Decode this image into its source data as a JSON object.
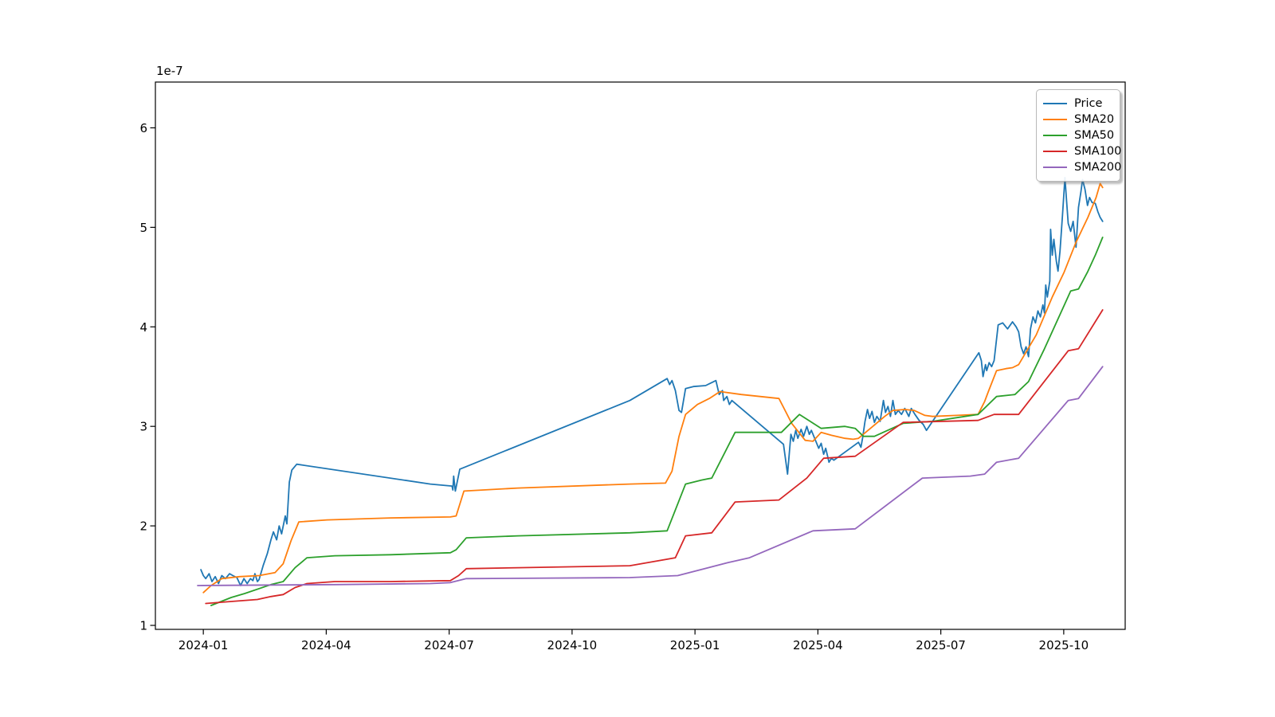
{
  "figure": {
    "background": "#ffffff"
  },
  "chart_data": {
    "type": "line",
    "title": "",
    "offset_text": "1e-7",
    "xlabel": "",
    "ylabel": "",
    "grid": false,
    "legend_position": "upper right",
    "x_unit": "months since 2024-01-01",
    "y_unit": "value x 1e-7",
    "x_range_months": [
      -1.17,
      22.5
    ],
    "y_range": [
      0.96,
      6.46
    ],
    "x_tick_months": [
      0,
      3,
      6,
      9,
      12,
      15,
      18,
      21
    ],
    "x_tick_labels": [
      "2024-01",
      "2024-04",
      "2024-07",
      "2024-10",
      "2025-01",
      "2025-04",
      "2025-07",
      "2025-10"
    ],
    "y_ticks": [
      1,
      2,
      3,
      4,
      5,
      6
    ],
    "y_tick_labels": [
      "1",
      "2",
      "3",
      "4",
      "5",
      "6"
    ],
    "series": [
      {
        "name": "Price",
        "color": "#1f77b4",
        "points": [
          [
            -0.06,
            1.56
          ],
          [
            0,
            1.5
          ],
          [
            0.06,
            1.47
          ],
          [
            0.14,
            1.52
          ],
          [
            0.21,
            1.44
          ],
          [
            0.29,
            1.49
          ],
          [
            0.37,
            1.42
          ],
          [
            0.45,
            1.5
          ],
          [
            0.54,
            1.47
          ],
          [
            0.64,
            1.52
          ],
          [
            0.72,
            1.5
          ],
          [
            0.82,
            1.48
          ],
          [
            0.91,
            1.4
          ],
          [
            0.99,
            1.47
          ],
          [
            1.07,
            1.42
          ],
          [
            1.15,
            1.47
          ],
          [
            1.21,
            1.45
          ],
          [
            1.26,
            1.52
          ],
          [
            1.32,
            1.44
          ],
          [
            1.36,
            1.46
          ],
          [
            1.46,
            1.6
          ],
          [
            1.56,
            1.72
          ],
          [
            1.65,
            1.86
          ],
          [
            1.71,
            1.94
          ],
          [
            1.79,
            1.86
          ],
          [
            1.85,
            2
          ],
          [
            1.91,
            1.92
          ],
          [
            2,
            2.1
          ],
          [
            2.04,
            2.02
          ],
          [
            2.1,
            2.44
          ],
          [
            2.16,
            2.56
          ],
          [
            2.28,
            2.62
          ],
          [
            5.54,
            2.42
          ],
          [
            6.07,
            2.4
          ],
          [
            6.09,
            2.36
          ],
          [
            6.11,
            2.5
          ],
          [
            6.15,
            2.35
          ],
          [
            6.26,
            2.57
          ],
          [
            10.41,
            3.26
          ],
          [
            11.32,
            3.48
          ],
          [
            11.38,
            3.42
          ],
          [
            11.44,
            3.46
          ],
          [
            11.52,
            3.36
          ],
          [
            11.61,
            3.16
          ],
          [
            11.67,
            3.14
          ],
          [
            11.77,
            3.38
          ],
          [
            11.96,
            3.4
          ],
          [
            12.26,
            3.41
          ],
          [
            12.51,
            3.46
          ],
          [
            12.59,
            3.32
          ],
          [
            12.67,
            3.36
          ],
          [
            12.7,
            3.26
          ],
          [
            12.78,
            3.3
          ],
          [
            12.84,
            3.22
          ],
          [
            12.9,
            3.26
          ],
          [
            14.16,
            2.82
          ],
          [
            14.26,
            2.52
          ],
          [
            14.34,
            2.92
          ],
          [
            14.4,
            2.85
          ],
          [
            14.46,
            2.96
          ],
          [
            14.51,
            2.88
          ],
          [
            14.59,
            2.97
          ],
          [
            14.65,
            2.9
          ],
          [
            14.73,
            3
          ],
          [
            14.79,
            2.92
          ],
          [
            14.84,
            2.96
          ],
          [
            14.92,
            2.88
          ],
          [
            15.02,
            2.78
          ],
          [
            15.08,
            2.83
          ],
          [
            15.14,
            2.72
          ],
          [
            15.19,
            2.78
          ],
          [
            15.27,
            2.64
          ],
          [
            15.33,
            2.68
          ],
          [
            15.39,
            2.66
          ],
          [
            15.99,
            2.84
          ],
          [
            16.05,
            2.79
          ],
          [
            16.09,
            2.88
          ],
          [
            16.15,
            3.05
          ],
          [
            16.21,
            3.17
          ],
          [
            16.26,
            3.08
          ],
          [
            16.32,
            3.15
          ],
          [
            16.38,
            3.04
          ],
          [
            16.44,
            3.1
          ],
          [
            16.52,
            3.05
          ],
          [
            16.6,
            3.26
          ],
          [
            16.65,
            3.14
          ],
          [
            16.71,
            3.2
          ],
          [
            16.77,
            3.1
          ],
          [
            16.83,
            3.26
          ],
          [
            16.89,
            3.12
          ],
          [
            16.96,
            3.16
          ],
          [
            17.04,
            3.12
          ],
          [
            17.12,
            3.18
          ],
          [
            17.22,
            3.1
          ],
          [
            17.28,
            3.18
          ],
          [
            17.37,
            3.12
          ],
          [
            17.47,
            3.06
          ],
          [
            17.57,
            3.02
          ],
          [
            17.65,
            2.96
          ],
          [
            18.93,
            3.74
          ],
          [
            18.99,
            3.66
          ],
          [
            19.03,
            3.5
          ],
          [
            19.09,
            3.62
          ],
          [
            19.12,
            3.56
          ],
          [
            19.18,
            3.64
          ],
          [
            19.24,
            3.6
          ],
          [
            19.3,
            3.66
          ],
          [
            19.4,
            4.02
          ],
          [
            19.51,
            4.04
          ],
          [
            19.63,
            3.98
          ],
          [
            19.75,
            4.05
          ],
          [
            19.84,
            4
          ],
          [
            19.9,
            3.95
          ],
          [
            19.96,
            3.8
          ],
          [
            20.02,
            3.73
          ],
          [
            20.08,
            3.8
          ],
          [
            20.14,
            3.7
          ],
          [
            20.19,
            3.98
          ],
          [
            20.25,
            4.1
          ],
          [
            20.31,
            4.04
          ],
          [
            20.37,
            4.16
          ],
          [
            20.43,
            4.1
          ],
          [
            20.49,
            4.22
          ],
          [
            20.53,
            4.14
          ],
          [
            20.56,
            4.42
          ],
          [
            20.6,
            4.3
          ],
          [
            20.66,
            4.46
          ],
          [
            20.68,
            4.98
          ],
          [
            20.72,
            4.72
          ],
          [
            20.76,
            4.88
          ],
          [
            20.82,
            4.66
          ],
          [
            20.86,
            4.56
          ],
          [
            20.91,
            4.76
          ],
          [
            20.97,
            5.12
          ],
          [
            21.03,
            5.5
          ],
          [
            21.07,
            5.26
          ],
          [
            21.11,
            5.04
          ],
          [
            21.17,
            4.96
          ],
          [
            21.23,
            5.06
          ],
          [
            21.3,
            4.8
          ],
          [
            21.36,
            5.2
          ],
          [
            21.42,
            5.36
          ],
          [
            21.46,
            5.48
          ],
          [
            21.52,
            5.38
          ],
          [
            21.58,
            5.22
          ],
          [
            21.63,
            5.3
          ],
          [
            21.69,
            5.25
          ],
          [
            21.77,
            5.24
          ],
          [
            21.83,
            5.16
          ],
          [
            21.89,
            5.1
          ],
          [
            21.95,
            5.06
          ]
        ]
      },
      {
        "name": "SMA20",
        "color": "#ff7f0e",
        "points": [
          [
            0,
            1.33
          ],
          [
            0.19,
            1.4
          ],
          [
            0.45,
            1.47
          ],
          [
            0.88,
            1.49
          ],
          [
            1.36,
            1.5
          ],
          [
            1.75,
            1.53
          ],
          [
            1.95,
            1.62
          ],
          [
            2.14,
            1.85
          ],
          [
            2.33,
            2.04
          ],
          [
            3.02,
            2.06
          ],
          [
            4.57,
            2.08
          ],
          [
            6.03,
            2.09
          ],
          [
            6.17,
            2.1
          ],
          [
            6.36,
            2.35
          ],
          [
            7.68,
            2.38
          ],
          [
            10.41,
            2.42
          ],
          [
            11.28,
            2.43
          ],
          [
            11.44,
            2.55
          ],
          [
            11.61,
            2.9
          ],
          [
            11.77,
            3.12
          ],
          [
            12.06,
            3.22
          ],
          [
            12.35,
            3.28
          ],
          [
            12.61,
            3.35
          ],
          [
            13.13,
            3.32
          ],
          [
            14.05,
            3.28
          ],
          [
            14.36,
            3.03
          ],
          [
            14.69,
            2.86
          ],
          [
            14.88,
            2.85
          ],
          [
            15.08,
            2.94
          ],
          [
            15.33,
            2.91
          ],
          [
            15.66,
            2.88
          ],
          [
            15.86,
            2.87
          ],
          [
            15.99,
            2.88
          ],
          [
            16.34,
            3
          ],
          [
            16.63,
            3.1
          ],
          [
            16.83,
            3.16
          ],
          [
            17.12,
            3.17
          ],
          [
            17.35,
            3.16
          ],
          [
            17.61,
            3.11
          ],
          [
            17.8,
            3.1
          ],
          [
            18.39,
            3.11
          ],
          [
            18.91,
            3.12
          ],
          [
            19.07,
            3.25
          ],
          [
            19.16,
            3.35
          ],
          [
            19.36,
            3.56
          ],
          [
            19.59,
            3.58
          ],
          [
            19.75,
            3.59
          ],
          [
            19.9,
            3.62
          ],
          [
            20.33,
            3.92
          ],
          [
            20.72,
            4.3
          ],
          [
            21.01,
            4.55
          ],
          [
            21.3,
            4.85
          ],
          [
            21.59,
            5.1
          ],
          [
            21.79,
            5.3
          ],
          [
            21.89,
            5.44
          ],
          [
            21.95,
            5.4
          ]
        ]
      },
      {
        "name": "SMA50",
        "color": "#2ca02c",
        "points": [
          [
            0.19,
            1.2
          ],
          [
            0.68,
            1.28
          ],
          [
            1.01,
            1.32
          ],
          [
            1.65,
            1.41
          ],
          [
            1.95,
            1.44
          ],
          [
            2.24,
            1.58
          ],
          [
            2.53,
            1.68
          ],
          [
            3.21,
            1.7
          ],
          [
            4.57,
            1.71
          ],
          [
            6.03,
            1.73
          ],
          [
            6.17,
            1.76
          ],
          [
            6.42,
            1.88
          ],
          [
            7.68,
            1.9
          ],
          [
            10.41,
            1.93
          ],
          [
            11.32,
            1.95
          ],
          [
            11.77,
            2.42
          ],
          [
            12.16,
            2.46
          ],
          [
            12.41,
            2.48
          ],
          [
            12.98,
            2.94
          ],
          [
            14.11,
            2.94
          ],
          [
            14.5,
            3.1
          ],
          [
            14.55,
            3.12
          ],
          [
            15.08,
            2.98
          ],
          [
            15.66,
            3
          ],
          [
            15.91,
            2.98
          ],
          [
            16.11,
            2.9
          ],
          [
            16.38,
            2.9
          ],
          [
            17.08,
            3.03
          ],
          [
            17.8,
            3.05
          ],
          [
            18.91,
            3.12
          ],
          [
            19.36,
            3.3
          ],
          [
            19.81,
            3.32
          ],
          [
            20.14,
            3.45
          ],
          [
            20.53,
            3.78
          ],
          [
            21.17,
            4.36
          ],
          [
            21.36,
            4.38
          ],
          [
            21.58,
            4.55
          ],
          [
            21.77,
            4.72
          ],
          [
            21.95,
            4.9
          ]
        ]
      },
      {
        "name": "SMA100",
        "color": "#d62728",
        "points": [
          [
            0.06,
            1.22
          ],
          [
            0.68,
            1.24
          ],
          [
            1.32,
            1.26
          ],
          [
            1.65,
            1.29
          ],
          [
            1.95,
            1.31
          ],
          [
            2.24,
            1.38
          ],
          [
            2.53,
            1.42
          ],
          [
            3.21,
            1.44
          ],
          [
            4.57,
            1.44
          ],
          [
            6.03,
            1.45
          ],
          [
            6.23,
            1.5
          ],
          [
            6.42,
            1.57
          ],
          [
            7.68,
            1.58
          ],
          [
            10.41,
            1.6
          ],
          [
            11.52,
            1.68
          ],
          [
            11.77,
            1.9
          ],
          [
            12.41,
            1.93
          ],
          [
            12.98,
            2.24
          ],
          [
            14.05,
            2.26
          ],
          [
            14.73,
            2.48
          ],
          [
            15.14,
            2.68
          ],
          [
            15.91,
            2.7
          ],
          [
            17.08,
            3.04
          ],
          [
            18.91,
            3.06
          ],
          [
            19.3,
            3.12
          ],
          [
            19.9,
            3.12
          ],
          [
            21.11,
            3.76
          ],
          [
            21.36,
            3.78
          ],
          [
            21.95,
            4.17
          ]
        ]
      },
      {
        "name": "SMA200",
        "color": "#9467bd",
        "points": [
          [
            -0.14,
            1.4
          ],
          [
            3.21,
            1.41
          ],
          [
            5.54,
            1.42
          ],
          [
            6.03,
            1.43
          ],
          [
            6.42,
            1.47
          ],
          [
            10.41,
            1.48
          ],
          [
            11.58,
            1.5
          ],
          [
            12.8,
            1.63
          ],
          [
            13.33,
            1.68
          ],
          [
            14.88,
            1.95
          ],
          [
            15.91,
            1.97
          ],
          [
            17.55,
            2.48
          ],
          [
            18.72,
            2.5
          ],
          [
            19.07,
            2.52
          ],
          [
            19.36,
            2.64
          ],
          [
            19.9,
            2.68
          ],
          [
            21.11,
            3.26
          ],
          [
            21.36,
            3.28
          ],
          [
            21.95,
            3.6
          ]
        ]
      }
    ]
  }
}
